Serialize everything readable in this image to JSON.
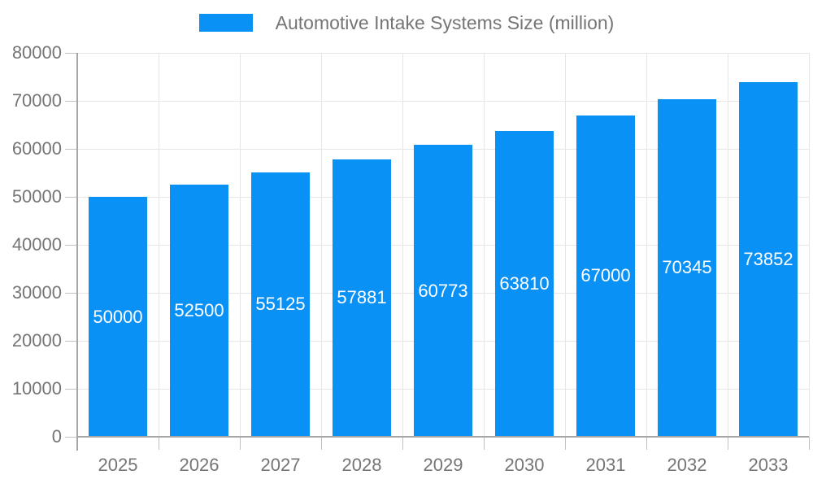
{
  "chart_data": {
    "type": "bar",
    "title": "Automotive Intake Systems Size (million)",
    "legend": {
      "label": "Automotive Intake Systems Size (million)",
      "position": "top-center"
    },
    "categories": [
      "2025",
      "2026",
      "2027",
      "2028",
      "2029",
      "2030",
      "2031",
      "2032",
      "2033"
    ],
    "series": [
      {
        "name": "Automotive Intake Systems Size (million)",
        "values": [
          50000,
          52500,
          55125,
          57881,
          60773,
          63810,
          67000,
          70345,
          73852
        ]
      }
    ],
    "value_labels": [
      "50000",
      "52500",
      "55125",
      "57881",
      "60773",
      "63810",
      "67000",
      "70345",
      "73852"
    ],
    "xlabel": "",
    "ylabel": "",
    "ylim": [
      0,
      80000
    ],
    "ytick_step": 10000,
    "grid": true,
    "colors": {
      "bar": "#0a91f5",
      "grid": "#e6e6e6",
      "axis": "#a6a6a6",
      "outer_tick": "#c2c2c2",
      "axis_text": "#757575",
      "value_label": "#ffffff",
      "background": "#ffffff"
    }
  }
}
